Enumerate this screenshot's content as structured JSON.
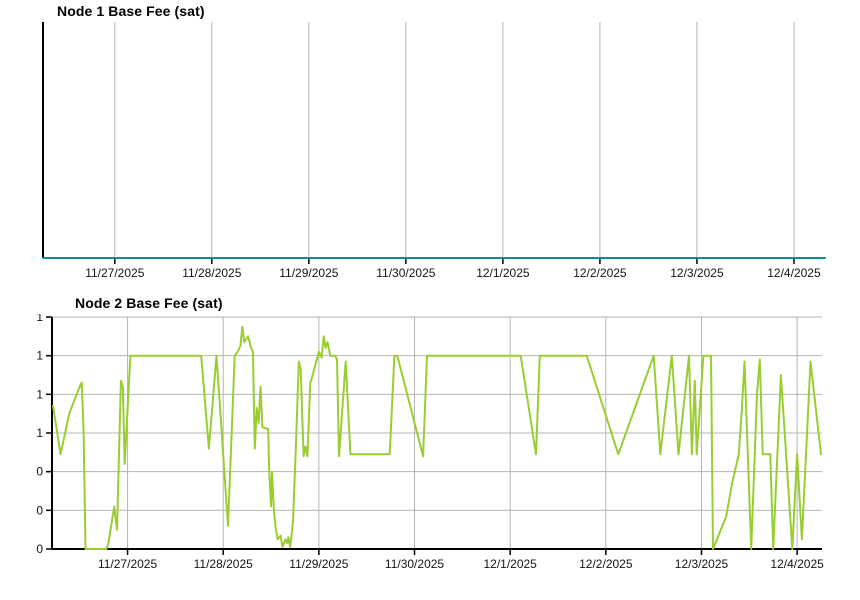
{
  "chart_data": [
    {
      "type": "line",
      "title": "Node 1 Base Fee (sat)",
      "xlabel": "",
      "ylabel": "",
      "grid": "vertical",
      "grid_color": "#b5b5b5",
      "axis_color": "#000000",
      "xlim": [
        -0.74,
        7.32
      ],
      "ylim": [
        0,
        1.2
      ],
      "x_tick_positions": [
        0,
        1,
        2,
        3,
        4,
        5,
        6,
        7
      ],
      "x_tick_labels": [
        "11/27/2025",
        "11/28/2025",
        "11/29/2025",
        "11/30/2025",
        "12/1/2025",
        "12/2/2025",
        "12/3/2025",
        "12/4/2025"
      ],
      "y_ticks": [],
      "series": [
        {
          "name": "Node 1 Base Fee",
          "color": "#0D8E90",
          "points": [
            [
              -0.74,
              0
            ],
            [
              7.32,
              0
            ]
          ]
        }
      ]
    },
    {
      "type": "line",
      "title": "Node 2 Base Fee (sat)",
      "xlabel": "",
      "ylabel": "",
      "grid": "both",
      "grid_color": "#b5b5b5",
      "axis_color": "#000000",
      "xlim": [
        -0.79,
        7.26
      ],
      "ylim": [
        0,
        1.2
      ],
      "x_tick_positions": [
        0,
        1,
        2,
        3,
        4,
        5,
        6,
        7
      ],
      "x_tick_labels": [
        "11/27/2025",
        "11/28/2025",
        "11/29/2025",
        "11/30/2025",
        "12/1/2025",
        "12/2/2025",
        "12/3/2025",
        "12/4/2025"
      ],
      "y_ticks": [
        {
          "value": 1.2,
          "label": "1"
        },
        {
          "value": 1.0,
          "label": "1"
        },
        {
          "value": 0.8,
          "label": "1"
        },
        {
          "value": 0.6,
          "label": "1"
        },
        {
          "value": 0.4,
          "label": "0"
        },
        {
          "value": 0.2,
          "label": "0"
        },
        {
          "value": 0.0,
          "label": "0"
        }
      ],
      "series": [
        {
          "name": "Node 2 Base Fee",
          "color": "#9ACD32",
          "points": [
            [
              -0.78,
              0.74
            ],
            [
              -0.7,
              0.49
            ],
            [
              -0.61,
              0.7
            ],
            [
              -0.5,
              0.84
            ],
            [
              -0.48,
              0.86
            ],
            [
              -0.46,
              0.61
            ],
            [
              -0.44,
              0.0
            ],
            [
              -0.22,
              0.0
            ],
            [
              -0.2,
              0.03
            ],
            [
              -0.14,
              0.22
            ],
            [
              -0.11,
              0.1
            ],
            [
              -0.07,
              0.87
            ],
            [
              -0.05,
              0.84
            ],
            [
              -0.03,
              0.44
            ],
            [
              0.03,
              1.0
            ],
            [
              0.73,
              1.0
            ],
            [
              0.77,
              1.0
            ],
            [
              0.85,
              0.52
            ],
            [
              0.93,
              1.0
            ],
            [
              1.05,
              0.12
            ],
            [
              1.12,
              1.0
            ],
            [
              1.15,
              1.02
            ],
            [
              1.18,
              1.05
            ],
            [
              1.2,
              1.15
            ],
            [
              1.22,
              1.07
            ],
            [
              1.26,
              1.1
            ],
            [
              1.29,
              1.04
            ],
            [
              1.31,
              1.02
            ],
            [
              1.33,
              0.52
            ],
            [
              1.35,
              0.73
            ],
            [
              1.37,
              0.65
            ],
            [
              1.39,
              0.84
            ],
            [
              1.41,
              0.63
            ],
            [
              1.47,
              0.62
            ],
            [
              1.48,
              0.42
            ],
            [
              1.5,
              0.22
            ],
            [
              1.51,
              0.4
            ],
            [
              1.53,
              0.2
            ],
            [
              1.55,
              0.1
            ],
            [
              1.57,
              0.05
            ],
            [
              1.6,
              0.07
            ],
            [
              1.62,
              0.01
            ],
            [
              1.65,
              0.05
            ],
            [
              1.67,
              0.03
            ],
            [
              1.68,
              0.06
            ],
            [
              1.7,
              0.01
            ],
            [
              1.73,
              0.14
            ],
            [
              1.76,
              0.53
            ],
            [
              1.79,
              0.97
            ],
            [
              1.81,
              0.93
            ],
            [
              1.84,
              0.48
            ],
            [
              1.86,
              0.53
            ],
            [
              1.88,
              0.48
            ],
            [
              1.91,
              0.86
            ],
            [
              1.93,
              0.89
            ],
            [
              2.0,
              1.02
            ],
            [
              2.03,
              0.99
            ],
            [
              2.05,
              1.1
            ],
            [
              2.07,
              1.04
            ],
            [
              2.09,
              1.07
            ],
            [
              2.12,
              1.0
            ],
            [
              2.17,
              1.0
            ],
            [
              2.19,
              0.98
            ],
            [
              2.21,
              0.48
            ],
            [
              2.28,
              0.97
            ],
            [
              2.33,
              0.49
            ],
            [
              2.74,
              0.49
            ],
            [
              2.79,
              1.0
            ],
            [
              2.82,
              1.0
            ],
            [
              3.09,
              0.48
            ],
            [
              3.13,
              1.0
            ],
            [
              4.11,
              1.0
            ],
            [
              4.27,
              0.49
            ],
            [
              4.31,
              1.0
            ],
            [
              4.8,
              1.0
            ],
            [
              5.13,
              0.49
            ],
            [
              5.5,
              1.0
            ],
            [
              5.57,
              0.49
            ],
            [
              5.69,
              1.0
            ],
            [
              5.76,
              0.49
            ],
            [
              5.87,
              1.0
            ],
            [
              5.9,
              0.49
            ],
            [
              5.93,
              0.87
            ],
            [
              5.95,
              0.49
            ],
            [
              6.02,
              1.0
            ],
            [
              6.1,
              1.0
            ],
            [
              6.12,
              0.0
            ],
            [
              6.26,
              0.17
            ],
            [
              6.32,
              0.34
            ],
            [
              6.39,
              0.49
            ],
            [
              6.42,
              0.71
            ],
            [
              6.45,
              0.97
            ],
            [
              6.52,
              0.0
            ],
            [
              6.58,
              0.8
            ],
            [
              6.61,
              0.98
            ],
            [
              6.64,
              0.49
            ],
            [
              6.72,
              0.49
            ],
            [
              6.75,
              0.0
            ],
            [
              6.83,
              0.9
            ],
            [
              6.95,
              0.0
            ],
            [
              7.0,
              0.49
            ],
            [
              7.05,
              0.05
            ],
            [
              7.14,
              0.97
            ],
            [
              7.25,
              0.49
            ]
          ]
        }
      ]
    }
  ]
}
